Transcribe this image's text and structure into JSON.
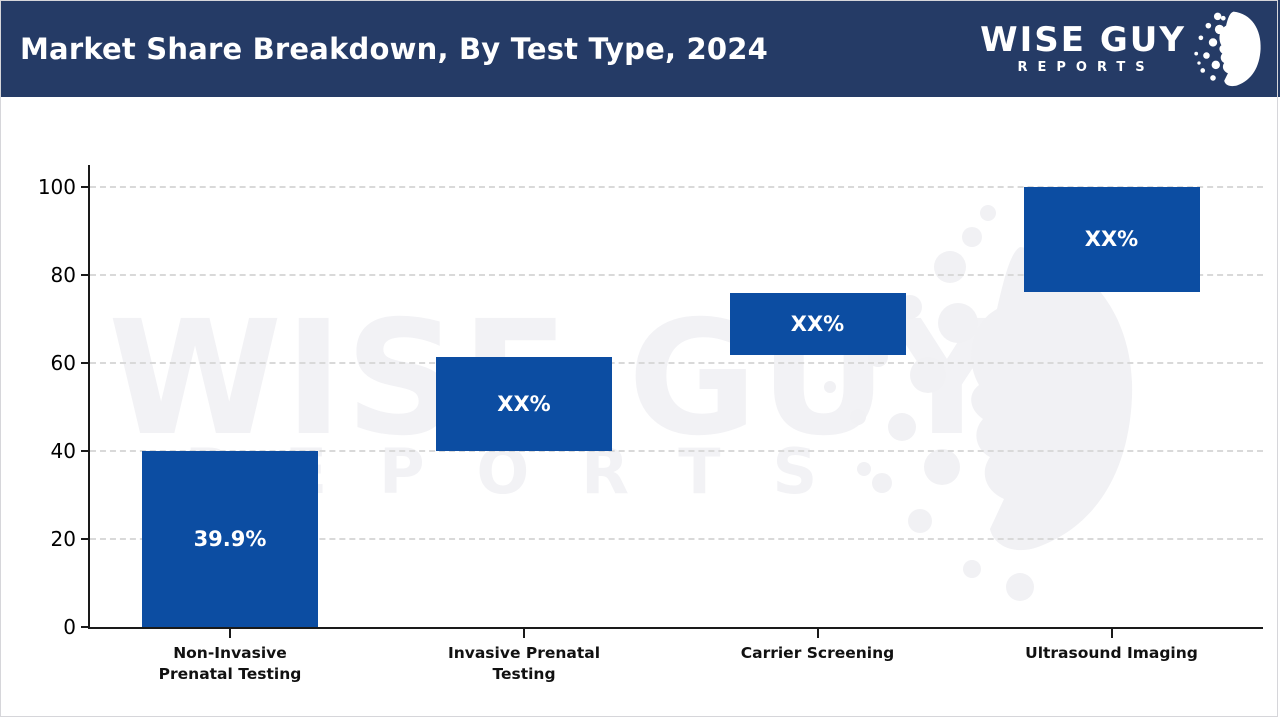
{
  "header": {
    "title": "Market Share Breakdown, By Test Type, 2024",
    "logo": {
      "line1": "WISE GUY",
      "line2": "REPORTS"
    }
  },
  "watermark": {
    "line1": "WISE GUY",
    "line2": "REPORTS"
  },
  "chart_data": {
    "type": "bar",
    "subtype": "waterfall",
    "title": "Market Share Breakdown, By Test Type, 2024",
    "categories": [
      "Non-Invasive Prenatal Testing",
      "Invasive Prenatal Testing",
      "Carrier Screening",
      "Ultrasound Imaging"
    ],
    "category_lines": [
      [
        "Non-Invasive",
        "Prenatal Testing"
      ],
      [
        "Invasive Prenatal",
        "Testing"
      ],
      [
        "Carrier Screening"
      ],
      [
        "Ultrasound Imaging"
      ]
    ],
    "segments": [
      {
        "category": "Non-Invasive Prenatal Testing",
        "start": 0,
        "end": 39.9,
        "label": "39.9%"
      },
      {
        "category": "Invasive Prenatal Testing",
        "start": 40,
        "end": 61.3,
        "label": "XX%"
      },
      {
        "category": "Carrier Screening",
        "start": 61.7,
        "end": 75.9,
        "label": "XX%"
      },
      {
        "category": "Ultrasound Imaging",
        "start": 76,
        "end": 100,
        "label": "XX%"
      }
    ],
    "y_ticks": [
      0,
      20,
      40,
      60,
      80,
      100
    ],
    "ylim": [
      0,
      100
    ],
    "xlabel": "",
    "ylabel": "",
    "legend": "none",
    "grid": "dashed-horizontal",
    "bar_color": "#0c4da2",
    "bar_label_color": "#ffffff",
    "header_color": "#253b66"
  }
}
